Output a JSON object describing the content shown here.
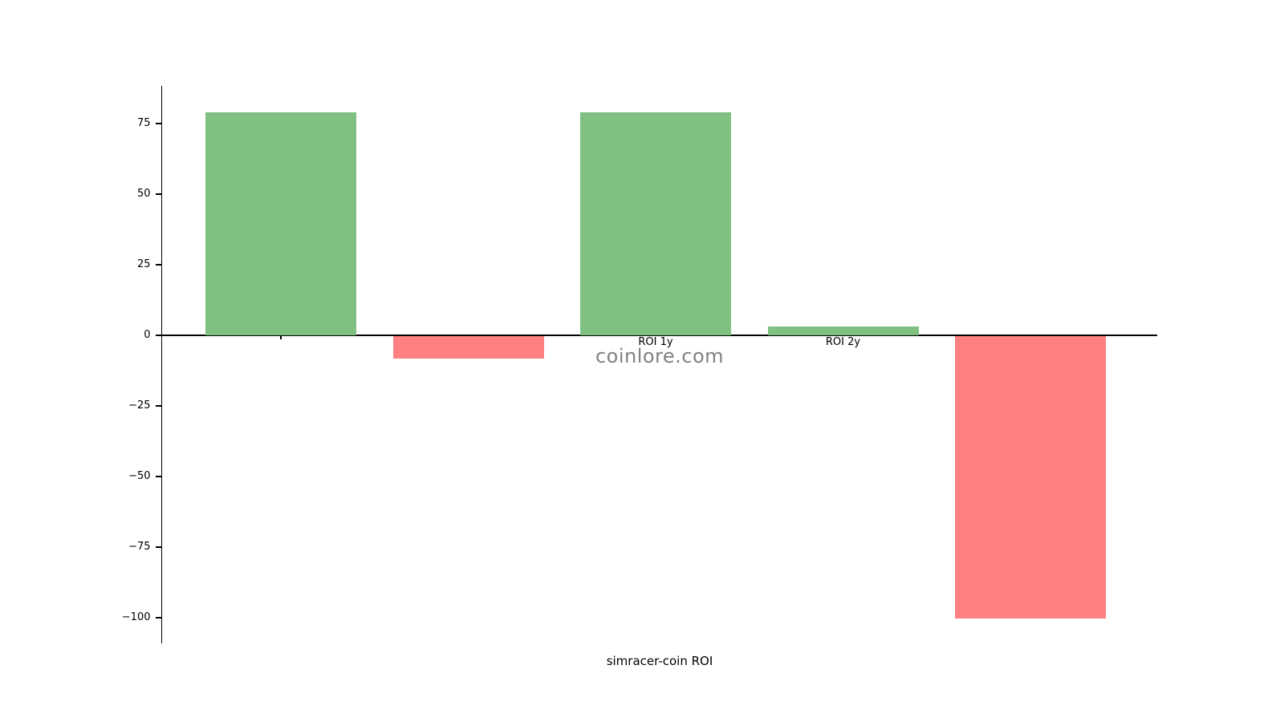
{
  "page": {
    "background": "#ffffff"
  },
  "chart_data": {
    "type": "bar",
    "title": "simracer-coin ROI",
    "watermark": "coinlore.com",
    "categories": [
      "",
      "",
      "ROI 1y",
      "ROI 2y",
      ""
    ],
    "values": [
      79,
      -8,
      79,
      3,
      -100
    ],
    "bar_colors": [
      "#80c080",
      "#ff8080",
      "#80c080",
      "#80c080",
      "#ff8080"
    ],
    "positive_color": "#80c080",
    "negative_color": "#ff8080",
    "ytick_values": [
      75,
      50,
      25,
      0,
      -25,
      -50,
      -75,
      -100
    ],
    "ytick_labels": [
      "75",
      "50",
      "25",
      "0",
      "−25",
      "−50",
      "−75",
      "−100"
    ],
    "ylim": [
      -109,
      88
    ],
    "xtick_mark_indices": [
      0
    ],
    "grid": false,
    "legend_position": "none",
    "axis_color": "#000000",
    "text_color": "#000000",
    "watermark_color": "#808080"
  }
}
